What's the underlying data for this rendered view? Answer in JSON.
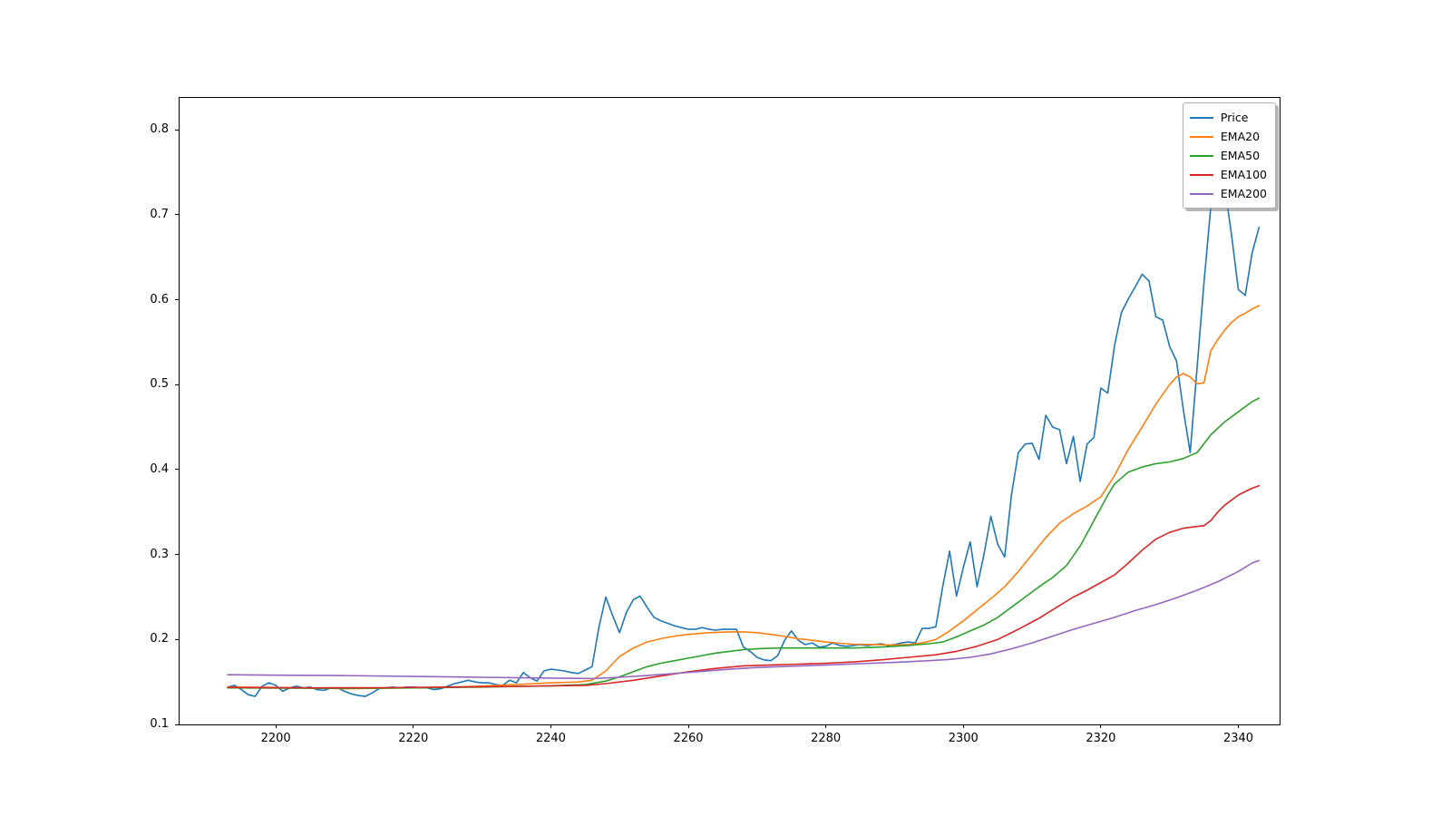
{
  "chart_data": {
    "type": "line",
    "title": "",
    "xlabel": "",
    "ylabel": "",
    "xlim": [
      2186,
      2346
    ],
    "ylim": [
      0.1,
      0.8375
    ],
    "x_ticks": [
      2200,
      2220,
      2240,
      2260,
      2280,
      2300,
      2320,
      2340
    ],
    "y_ticks": [
      0.1,
      0.2,
      0.3,
      0.4,
      0.5,
      0.6,
      0.7,
      0.8
    ],
    "grid": false,
    "legend": {
      "position": "upper right",
      "entries": [
        "Price",
        "EMA20",
        "EMA50",
        "EMA100",
        "EMA200"
      ]
    },
    "colors": {
      "price": "#1f77b4",
      "ema20": "#ff7f0e",
      "ema50": "#2ca02c",
      "ema100": "#d62728",
      "ema200": "#9467bd"
    },
    "series": [
      {
        "name": "Price",
        "color": "#1f77b4",
        "x_start": 2193,
        "x_step": 1,
        "y": [
          0.144,
          0.146,
          0.141,
          0.135,
          0.133,
          0.145,
          0.149,
          0.146,
          0.139,
          0.143,
          0.145,
          0.143,
          0.144,
          0.141,
          0.14,
          0.143,
          0.143,
          0.139,
          0.136,
          0.134,
          0.133,
          0.137,
          0.142,
          0.143,
          0.144,
          0.143,
          0.144,
          0.144,
          0.143,
          0.143,
          0.141,
          0.142,
          0.145,
          0.148,
          0.15,
          0.152,
          0.15,
          0.149,
          0.149,
          0.147,
          0.146,
          0.152,
          0.149,
          0.161,
          0.155,
          0.151,
          0.163,
          0.165,
          0.164,
          0.163,
          0.161,
          0.16,
          0.164,
          0.168,
          0.215,
          0.25,
          0.228,
          0.208,
          0.232,
          0.247,
          0.251,
          0.238,
          0.226,
          0.222,
          0.219,
          0.216,
          0.214,
          0.212,
          0.212,
          0.214,
          0.212,
          0.211,
          0.212,
          0.212,
          0.212,
          0.191,
          0.186,
          0.179,
          0.176,
          0.175,
          0.181,
          0.199,
          0.21,
          0.199,
          0.194,
          0.196,
          0.191,
          0.192,
          0.196,
          0.193,
          0.192,
          0.193,
          0.194,
          0.193,
          0.194,
          0.195,
          0.193,
          0.194,
          0.196,
          0.197,
          0.196,
          0.213,
          0.213,
          0.215,
          0.262,
          0.304,
          0.251,
          0.285,
          0.315,
          0.262,
          0.3,
          0.345,
          0.312,
          0.297,
          0.37,
          0.42,
          0.43,
          0.431,
          0.412,
          0.464,
          0.45,
          0.447,
          0.407,
          0.439,
          0.386,
          0.43,
          0.438,
          0.496,
          0.49,
          0.546,
          0.585,
          0.601,
          0.615,
          0.63,
          0.622,
          0.58,
          0.576,
          0.545,
          0.528,
          0.47,
          0.42,
          0.52,
          0.62,
          0.71,
          0.745,
          0.735,
          0.677,
          0.612,
          0.605,
          0.655,
          0.685
        ]
      },
      {
        "name": "EMA20",
        "color": "#ff7f0e",
        "x": [
          2193,
          2200,
          2210,
          2220,
          2228,
          2235,
          2240,
          2244,
          2246,
          2248,
          2250,
          2252,
          2254,
          2256,
          2258,
          2260,
          2263,
          2266,
          2268,
          2270,
          2272,
          2274,
          2276,
          2278,
          2280,
          2282,
          2284,
          2287,
          2290,
          2292,
          2294,
          2296,
          2298,
          2300,
          2302,
          2304,
          2306,
          2308,
          2310,
          2312,
          2314,
          2316,
          2318,
          2320,
          2322,
          2324,
          2326,
          2328,
          2330,
          2331,
          2332,
          2333,
          2334,
          2335,
          2336,
          2337,
          2338,
          2339,
          2340,
          2341,
          2342,
          2343
        ],
        "y": [
          0.144,
          0.1435,
          0.142,
          0.143,
          0.1445,
          0.147,
          0.149,
          0.15,
          0.152,
          0.163,
          0.18,
          0.19,
          0.197,
          0.201,
          0.204,
          0.206,
          0.208,
          0.209,
          0.209,
          0.208,
          0.206,
          0.2035,
          0.201,
          0.199,
          0.197,
          0.1955,
          0.1945,
          0.194,
          0.1935,
          0.194,
          0.196,
          0.2,
          0.21,
          0.222,
          0.235,
          0.248,
          0.262,
          0.28,
          0.3,
          0.32,
          0.337,
          0.348,
          0.357,
          0.368,
          0.393,
          0.424,
          0.45,
          0.477,
          0.5,
          0.509,
          0.513,
          0.509,
          0.501,
          0.502,
          0.54,
          0.553,
          0.564,
          0.573,
          0.58,
          0.584,
          0.589,
          0.593
        ]
      },
      {
        "name": "EMA50",
        "color": "#2ca02c",
        "x": [
          2193,
          2200,
          2210,
          2220,
          2230,
          2240,
          2245,
          2248,
          2250,
          2252,
          2254,
          2256,
          2258,
          2260,
          2262,
          2264,
          2266,
          2268,
          2270,
          2273,
          2276,
          2280,
          2284,
          2288,
          2292,
          2295,
          2297,
          2299,
          2301,
          2303,
          2305,
          2307,
          2309,
          2311,
          2313,
          2315,
          2317,
          2319,
          2321,
          2322,
          2324,
          2326,
          2328,
          2330,
          2332,
          2334,
          2336,
          2338,
          2340,
          2342,
          2343
        ],
        "y": [
          0.143,
          0.1428,
          0.1425,
          0.143,
          0.144,
          0.1455,
          0.147,
          0.151,
          0.156,
          0.162,
          0.168,
          0.172,
          0.175,
          0.178,
          0.181,
          0.184,
          0.186,
          0.188,
          0.189,
          0.19,
          0.19,
          0.19,
          0.19,
          0.191,
          0.193,
          0.195,
          0.197,
          0.203,
          0.21,
          0.217,
          0.226,
          0.238,
          0.25,
          0.262,
          0.273,
          0.287,
          0.31,
          0.34,
          0.37,
          0.383,
          0.397,
          0.403,
          0.407,
          0.409,
          0.413,
          0.42,
          0.441,
          0.456,
          0.468,
          0.48,
          0.484
        ]
      },
      {
        "name": "EMA100",
        "color": "#d62728",
        "x": [
          2193,
          2205,
          2215,
          2225,
          2235,
          2245,
          2248,
          2252,
          2256,
          2260,
          2264,
          2268,
          2272,
          2276,
          2280,
          2284,
          2288,
          2292,
          2296,
          2299,
          2302,
          2305,
          2308,
          2311,
          2314,
          2316,
          2318,
          2320,
          2322,
          2324,
          2326,
          2328,
          2330,
          2332,
          2334,
          2335,
          2336,
          2337,
          2338,
          2340,
          2342,
          2343
        ],
        "y": [
          0.1435,
          0.143,
          0.1432,
          0.144,
          0.1448,
          0.146,
          0.148,
          0.152,
          0.157,
          0.162,
          0.166,
          0.169,
          0.17,
          0.171,
          0.172,
          0.1735,
          0.176,
          0.179,
          0.182,
          0.186,
          0.192,
          0.2,
          0.212,
          0.225,
          0.24,
          0.25,
          0.258,
          0.267,
          0.276,
          0.29,
          0.305,
          0.318,
          0.326,
          0.331,
          0.333,
          0.334,
          0.34,
          0.35,
          0.358,
          0.37,
          0.378,
          0.381
        ]
      },
      {
        "name": "EMA200",
        "color": "#9467bd",
        "x": [
          2193,
          2200,
          2210,
          2220,
          2230,
          2240,
          2246,
          2250,
          2254,
          2258,
          2262,
          2266,
          2270,
          2275,
          2280,
          2285,
          2290,
          2295,
          2298,
          2301,
          2304,
          2307,
          2310,
          2313,
          2316,
          2319,
          2322,
          2325,
          2328,
          2331,
          2334,
          2337,
          2340,
          2342,
          2343
        ],
        "y": [
          0.1585,
          0.158,
          0.1575,
          0.1565,
          0.1555,
          0.1545,
          0.154,
          0.1555,
          0.1575,
          0.16,
          0.1625,
          0.165,
          0.167,
          0.1685,
          0.17,
          0.1715,
          0.173,
          0.175,
          0.1765,
          0.179,
          0.183,
          0.189,
          0.196,
          0.204,
          0.212,
          0.219,
          0.226,
          0.234,
          0.241,
          0.249,
          0.258,
          0.268,
          0.28,
          0.29,
          0.293
        ]
      }
    ]
  }
}
